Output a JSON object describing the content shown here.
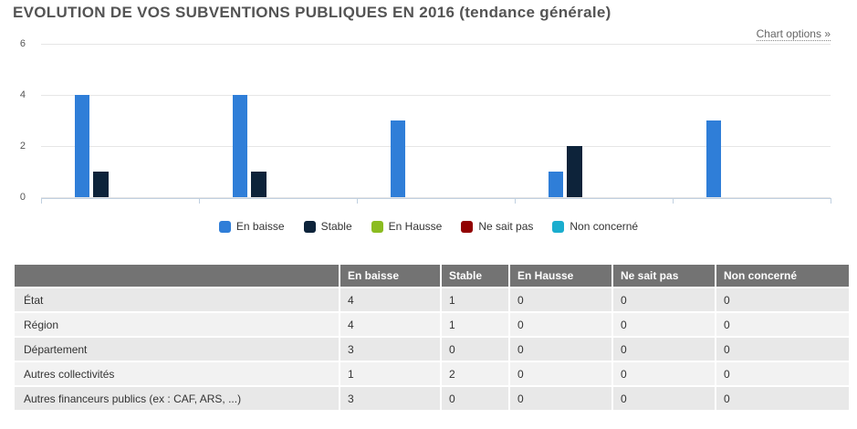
{
  "page": {
    "title": "EVOLUTION DE VOS SUBVENTIONS PUBLIQUES EN 2016 (tendance générale)",
    "chart_options_label": "Chart options »"
  },
  "colors": {
    "en_baisse": "#2f7ed8",
    "stable": "#0d233a",
    "en_hausse": "#8bbc21",
    "ne_sait_pas": "#910000",
    "non_concerne": "#1aadce",
    "gridline": "#e6e6e6",
    "axis": "#c0d0e0",
    "table_header_bg": "#737373",
    "row_odd_bg": "#e8e8e8",
    "row_even_bg": "#f2f2f2"
  },
  "chart_data": {
    "type": "bar",
    "title": "EVOLUTION DE VOS SUBVENTIONS PUBLIQUES EN 2016 (tendance générale)",
    "xlabel": "",
    "ylabel": "",
    "ylim": [
      0,
      6
    ],
    "yticks": [
      0,
      2,
      4,
      6
    ],
    "grid": true,
    "legend_position": "bottom",
    "categories": [
      "État",
      "Région",
      "Département",
      "Autres collectivités",
      "Autres financeurs publics (ex : CAF, ARS, ...)"
    ],
    "series": [
      {
        "name": "En baisse",
        "color": "#2f7ed8",
        "values": [
          4,
          4,
          3,
          1,
          3
        ]
      },
      {
        "name": "Stable",
        "color": "#0d233a",
        "values": [
          1,
          1,
          0,
          2,
          0
        ]
      },
      {
        "name": "En Hausse",
        "color": "#8bbc21",
        "values": [
          0,
          0,
          0,
          0,
          0
        ]
      },
      {
        "name": "Ne sait pas",
        "color": "#910000",
        "values": [
          0,
          0,
          0,
          0,
          0
        ]
      },
      {
        "name": "Non concerné",
        "color": "#1aadce",
        "values": [
          0,
          0,
          0,
          0,
          0
        ]
      }
    ]
  },
  "table": {
    "headers": [
      "",
      "En baisse",
      "Stable",
      "En Hausse",
      "Ne sait pas",
      "Non concerné"
    ],
    "rows": [
      {
        "label": "État",
        "values": [
          "4",
          "1",
          "0",
          "0",
          "0"
        ]
      },
      {
        "label": "Région",
        "values": [
          "4",
          "1",
          "0",
          "0",
          "0"
        ]
      },
      {
        "label": "Département",
        "values": [
          "3",
          "0",
          "0",
          "0",
          "0"
        ]
      },
      {
        "label": "Autres collectivités",
        "values": [
          "1",
          "2",
          "0",
          "0",
          "0"
        ]
      },
      {
        "label": "Autres financeurs publics (ex : CAF, ARS, ...)",
        "values": [
          "3",
          "0",
          "0",
          "0",
          "0"
        ]
      }
    ]
  }
}
